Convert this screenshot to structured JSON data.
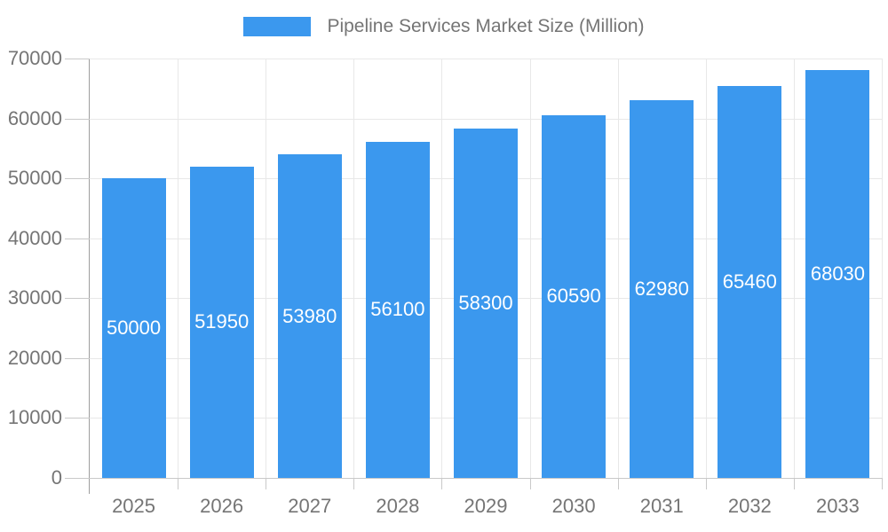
{
  "legend": {
    "label": "Pipeline Services Market Size (Million)"
  },
  "chart_data": {
    "type": "bar",
    "title": "Pipeline Services Market Size (Million)",
    "legend_position": "top",
    "categories": [
      "2025",
      "2026",
      "2027",
      "2028",
      "2029",
      "2030",
      "2031",
      "2032",
      "2033"
    ],
    "values": [
      50000,
      51950,
      53980,
      56100,
      58300,
      60590,
      62980,
      65460,
      68030
    ],
    "value_labels": [
      "50000",
      "51950",
      "53980",
      "56100",
      "58300",
      "60590",
      "62980",
      "65460",
      "68030"
    ],
    "xlabel": "",
    "ylabel": "",
    "ylim": [
      0,
      70000
    ],
    "yticks": [
      0,
      10000,
      20000,
      30000,
      40000,
      50000,
      60000,
      70000
    ],
    "ytick_labels": [
      "0",
      "10000",
      "20000",
      "30000",
      "40000",
      "50000",
      "60000",
      "70000"
    ],
    "grid": true
  },
  "colors": {
    "bar": "#3B98EE",
    "bar_value_label": "#FFFFFF",
    "axis_text": "#757575",
    "gridline": "#E8E8E8",
    "tick": "#C9C9C9",
    "y_axis_line": "#9E9E9E",
    "x_axis_line": "#C9C9C9"
  }
}
